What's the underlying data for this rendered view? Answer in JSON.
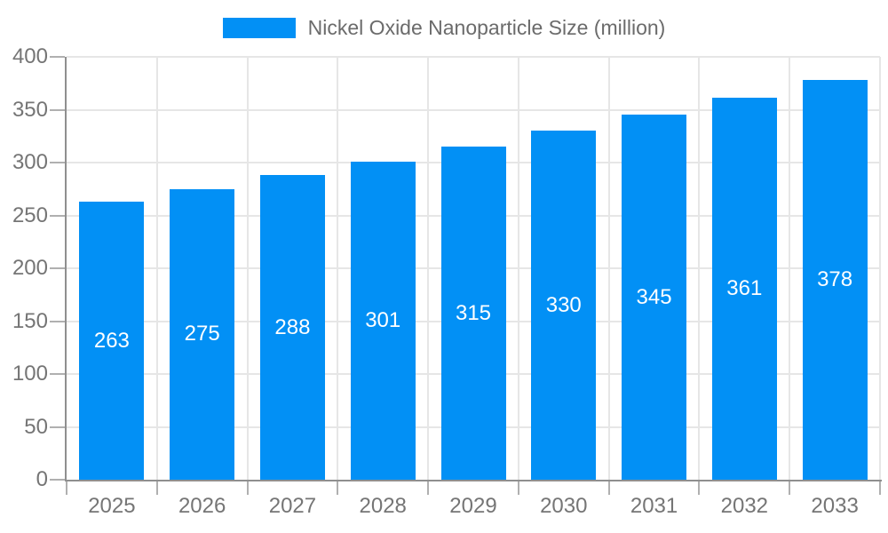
{
  "legend": {
    "label": "Nickel Oxide Nanoparticle Size (million)"
  },
  "chart_data": {
    "type": "bar",
    "title": "Nickel Oxide Nanoparticle Size (million)",
    "series_name": "Nickel Oxide Nanoparticle Size (million)",
    "categories": [
      "2025",
      "2026",
      "2027",
      "2028",
      "2029",
      "2030",
      "2031",
      "2032",
      "2033"
    ],
    "values": [
      263,
      275,
      288,
      301,
      315,
      330,
      345,
      361,
      378
    ],
    "xlabel": "",
    "ylabel": "",
    "ylim": [
      0,
      400
    ],
    "yticks": [
      0,
      50,
      100,
      150,
      200,
      250,
      300,
      350,
      400
    ],
    "grid": true,
    "legend_position": "top",
    "bar_labels_inside": true,
    "bar_color": "#0290f5",
    "bar_label_color": "#ffffff",
    "axis_text_color": "#757575",
    "legend_text_color": "#6b6b6b",
    "grid_color": "#e6e6e6",
    "tick_color": "#b0b0b0",
    "axis_line_color": "#8f8f8f"
  }
}
